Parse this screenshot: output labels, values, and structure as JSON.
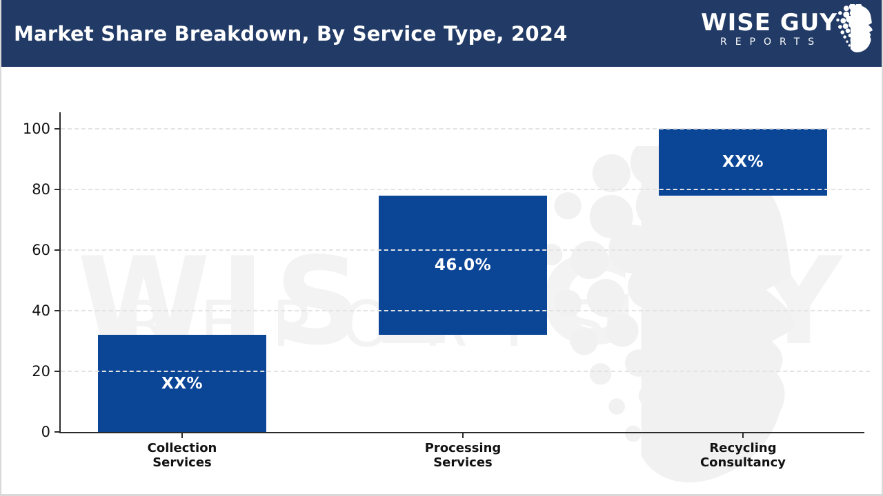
{
  "header": {
    "title": "Market Share Breakdown, By Service Type, 2024"
  },
  "brand": {
    "name": "WISE GUY",
    "sub": "REPORTS",
    "face_icon": "dotted-face-profile"
  },
  "watermark": {
    "line1": "WISE GUY",
    "line2": "REPORTS"
  },
  "colors": {
    "header_bg": "#213a66",
    "bar_fill": "#0a4596",
    "bar_label_text": "#ffffff",
    "axis": "#2b2b2b",
    "gridline": "#e3e3e3",
    "tick_text": "#111111",
    "watermark_text": "#f3f3f3",
    "page_border": "#d9d9d9",
    "title_text": "#ffffff"
  },
  "chart_data": {
    "type": "bar",
    "subtype": "floating-waterfall",
    "title": "Market Share Breakdown, By Service Type, 2024",
    "categories": [
      [
        "Collection",
        "Services"
      ],
      [
        "Processing",
        "Services"
      ],
      [
        "Recycling",
        "Consultancy"
      ]
    ],
    "bars": [
      {
        "category": "Collection Services",
        "start": 0,
        "end": 32,
        "label": "XX%"
      },
      {
        "category": "Processing Services",
        "start": 32,
        "end": 78,
        "label": "46.0%"
      },
      {
        "category": "Recycling Consultancy",
        "start": 78,
        "end": 100,
        "label": "XX%"
      }
    ],
    "yticks": [
      0,
      20,
      40,
      60,
      80,
      100
    ],
    "ylim": [
      0,
      105
    ],
    "grid": "dashed-horizontal",
    "legend": "none",
    "xlabel": "",
    "ylabel": ""
  }
}
